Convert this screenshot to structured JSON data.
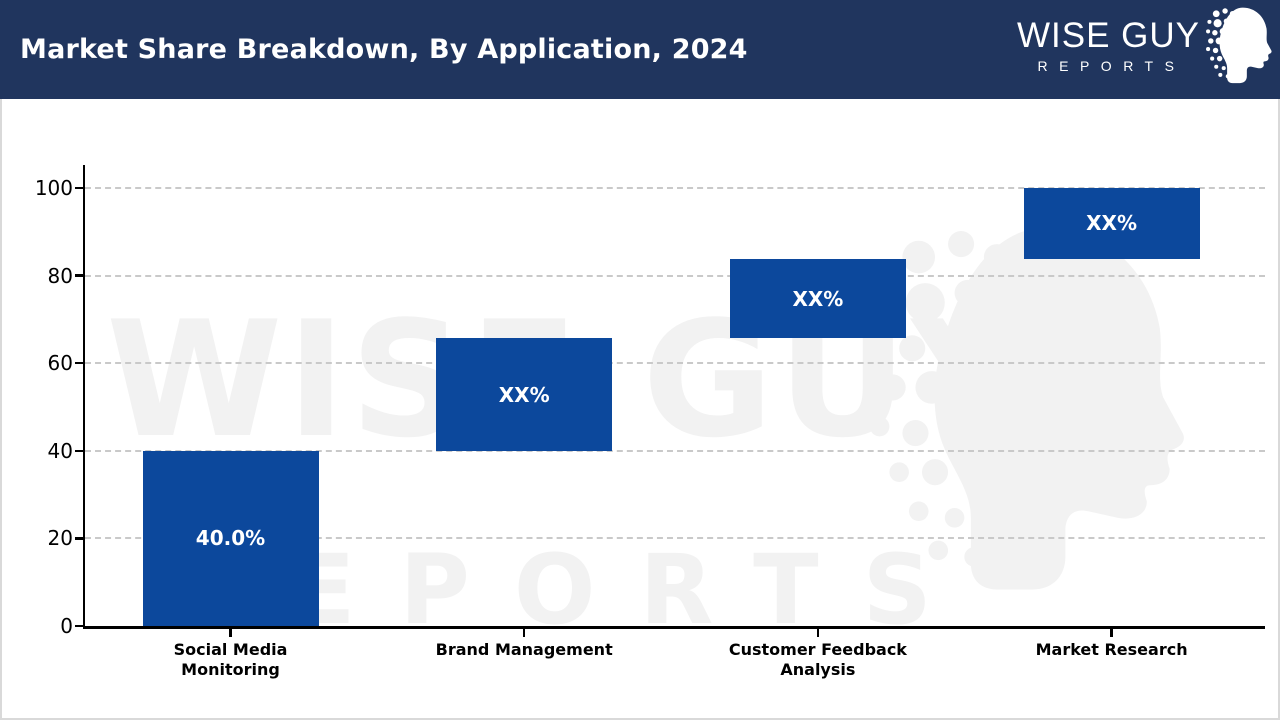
{
  "header": {
    "title": "Market Share Breakdown, By Application, 2024",
    "bg_color": "#20355e",
    "logo": {
      "line1": "WISE GUY",
      "line2": "REPORTS"
    }
  },
  "watermark": {
    "line1": "WISE GUY",
    "line2": "REPORTS"
  },
  "chart_data": {
    "type": "bar",
    "variant": "waterfall",
    "title": "Market Share Breakdown, By Application, 2024",
    "categories": [
      "Social Media Monitoring",
      "Brand Management",
      "Customer Feedback Analysis",
      "Market Research"
    ],
    "category_lines": [
      [
        "Social Media",
        "Monitoring"
      ],
      [
        "Brand Management"
      ],
      [
        "Customer Feedback",
        "Analysis"
      ],
      [
        "Market Research"
      ]
    ],
    "segments": [
      {
        "category": "Social Media Monitoring",
        "start": 0,
        "end": 40,
        "label": "40.0%"
      },
      {
        "category": "Brand Management",
        "start": 40,
        "end": 65.7,
        "label": "XX%"
      },
      {
        "category": "Customer Feedback Analysis",
        "start": 65.7,
        "end": 83.8,
        "label": "XX%"
      },
      {
        "category": "Market Research",
        "start": 83.8,
        "end": 100,
        "label": "XX%"
      }
    ],
    "ylim": [
      0,
      100
    ],
    "yticks": [
      0,
      20,
      40,
      60,
      80,
      100
    ],
    "xlabel": "",
    "ylabel": "",
    "grid": {
      "horizontal": true,
      "style": "dashed",
      "color": "#c9c9c9"
    },
    "legend": "none",
    "bar_color": "#0c489c",
    "bar_label_color": "#ffffff",
    "axis_color": "#000000"
  }
}
